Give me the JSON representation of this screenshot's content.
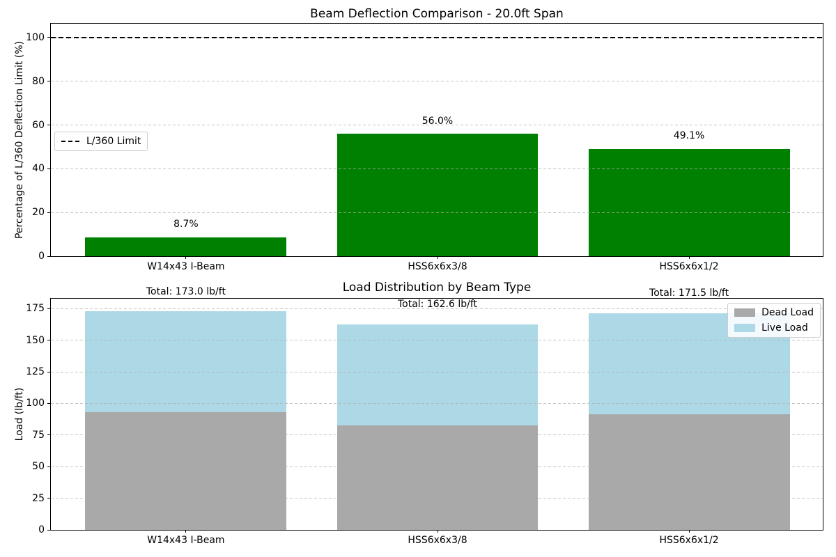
{
  "figure": {
    "background": "#ffffff"
  },
  "chart_data": [
    {
      "type": "bar",
      "title": "Beam Deflection Comparison - 20.0ft Span",
      "ylabel": "Percentage of L/360 Deflection Limit (%)",
      "xlabel": "",
      "categories": [
        "W14x43 I-Beam",
        "HSS6x6x3/8",
        "HSS6x6x1/2"
      ],
      "values": [
        8.7,
        56.0,
        49.1
      ],
      "bar_labels": [
        "8.7%",
        "56.0%",
        "49.1%"
      ],
      "bar_color": "#008000",
      "yticks": [
        "0",
        "20",
        "40",
        "60",
        "80",
        "100"
      ],
      "ylim": [
        0,
        107
      ],
      "grid": "dashed-horizontal",
      "legend_position": "center-left",
      "ref_line": {
        "value": 100,
        "style": "dashed",
        "color": "#000000",
        "label": "L/360 Limit"
      },
      "legend": {
        "entries": [
          {
            "label": "L/360 Limit",
            "marker": "dashed-line",
            "color": "#000000"
          }
        ]
      }
    },
    {
      "type": "stacked-bar",
      "title": "Load Distribution by Beam Type",
      "ylabel": "Load (lb/ft)",
      "xlabel": "",
      "categories": [
        "W14x43 I-Beam",
        "HSS6x6x3/8",
        "HSS6x6x1/2"
      ],
      "series": [
        {
          "name": "Dead Load",
          "color": "#a9a9a9",
          "values": [
            93.0,
            82.6,
            91.5
          ]
        },
        {
          "name": "Live Load",
          "color": "#add8e6",
          "values": [
            80.0,
            80.0,
            80.0
          ]
        }
      ],
      "totals": [
        173.0,
        162.6,
        171.5
      ],
      "total_labels": [
        "Total: 173.0 lb/ft",
        "Total: 162.6 lb/ft",
        "Total: 171.5 lb/ft"
      ],
      "yticks": [
        "0",
        "25",
        "50",
        "75",
        "100",
        "125",
        "150",
        "175"
      ],
      "ylim": [
        0,
        184
      ],
      "grid": "dashed-horizontal",
      "legend_position": "top-right",
      "legend": {
        "entries": [
          {
            "label": "Dead Load",
            "marker": "patch",
            "color": "#a9a9a9"
          },
          {
            "label": "Live Load",
            "marker": "patch",
            "color": "#add8e6"
          }
        ]
      }
    }
  ]
}
